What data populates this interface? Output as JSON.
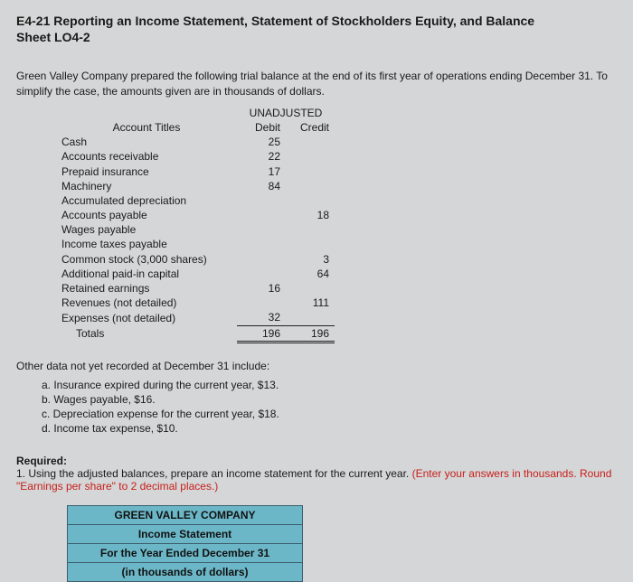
{
  "title_line1": "E4-21 Reporting an Income Statement, Statement of Stockholders Equity, and Balance",
  "title_line2": "Sheet LO4-2",
  "intro": "Green Valley Company prepared the following trial balance at the end of its first year of operations ending December 31. To simplify the case, the amounts given are in thousands of dollars.",
  "tb": {
    "group_header": "UNADJUSTED",
    "col_acct": "Account Titles",
    "col_debit": "Debit",
    "col_credit": "Credit",
    "rows": [
      {
        "acct": "Cash",
        "debit": "25",
        "credit": ""
      },
      {
        "acct": "Accounts receivable",
        "debit": "22",
        "credit": ""
      },
      {
        "acct": "Prepaid insurance",
        "debit": "17",
        "credit": ""
      },
      {
        "acct": "Machinery",
        "debit": "84",
        "credit": ""
      },
      {
        "acct": "Accumulated depreciation",
        "debit": "",
        "credit": ""
      },
      {
        "acct": "Accounts payable",
        "debit": "",
        "credit": "18"
      },
      {
        "acct": "Wages payable",
        "debit": "",
        "credit": ""
      },
      {
        "acct": "Income taxes payable",
        "debit": "",
        "credit": ""
      },
      {
        "acct": "Common stock (3,000 shares)",
        "debit": "",
        "credit": "3"
      },
      {
        "acct": "Additional paid-in capital",
        "debit": "",
        "credit": "64"
      },
      {
        "acct": "Retained earnings",
        "debit": "16",
        "credit": ""
      },
      {
        "acct": "Revenues (not detailed)",
        "debit": "",
        "credit": "111"
      },
      {
        "acct": "Expenses (not detailed)",
        "debit": "32",
        "credit": ""
      }
    ],
    "totals_label": "Totals",
    "totals_debit": "196",
    "totals_credit": "196"
  },
  "other_head": "Other data not yet recorded at December 31 include:",
  "other": {
    "a": "a. Insurance expired during the current year, $13.",
    "b": "b. Wages payable, $16.",
    "c": "c. Depreciation expense for the current year, $18.",
    "d": "d. Income tax expense, $10."
  },
  "required_label": "Required:",
  "required_1": "1. Using the adjusted balances, prepare an income statement for the current year. ",
  "required_instr": "(Enter your answers in thousands. Round \"Earnings per share\" to 2 decimal places.)",
  "form": {
    "r1": "GREEN VALLEY COMPANY",
    "r2": "Income Statement",
    "r3": "For the Year Ended December 31",
    "r4": "(in thousands of dollars)"
  },
  "colors": {
    "page_bg": "#d4d6d7",
    "text": "#1a1a1a",
    "instr": "#c8201b",
    "form_bg": "#6cb7c7",
    "form_border": "#3c5e6e"
  }
}
